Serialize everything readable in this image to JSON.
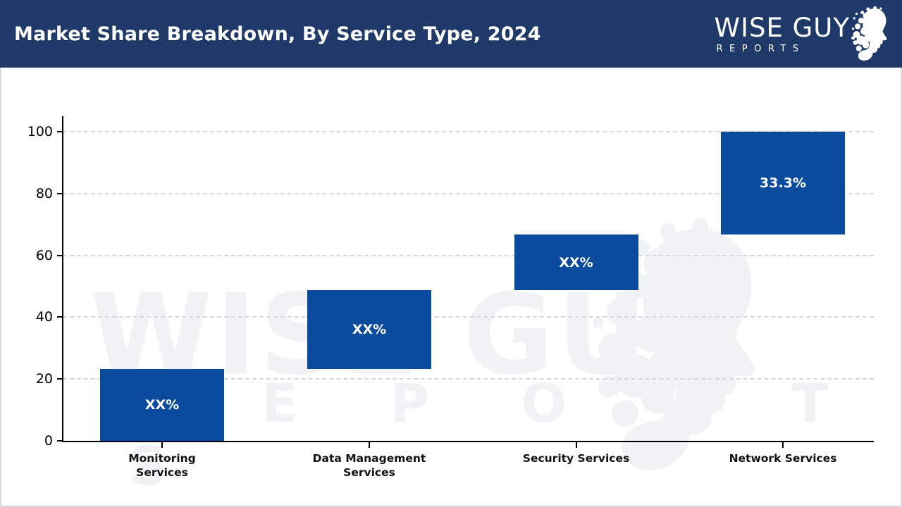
{
  "header": {
    "title": "Market Share Breakdown, By Service Type, 2024",
    "logo": {
      "line1": "WISE GUY",
      "line2": "REPORTS",
      "face_icon": "dotted-head-profile"
    }
  },
  "watermark": {
    "line1": "WISE GU",
    "line2": "R E P O R T S",
    "face_icon": "dotted-head-profile"
  },
  "colors": {
    "header_bg": "#1f3a68",
    "bar": "#0a4b9e",
    "bar_label": "#ffffff",
    "grid": "#d9d9d9",
    "axis": "#000000",
    "watermark": "#f1f2f4"
  },
  "chart_data": {
    "type": "bar",
    "subtype": "floating-waterfall",
    "title": "Market Share Breakdown, By Service Type, 2024",
    "xlabel": "",
    "ylabel": "",
    "ylim": [
      0,
      105
    ],
    "yticks": [
      0,
      20,
      40,
      60,
      80,
      100
    ],
    "grid": "horizontal-dashed",
    "legend": "none",
    "categories": [
      "Monitoring\nServices",
      "Data Management\nServices",
      "Security Services",
      "Network Services"
    ],
    "segments": [
      {
        "category": "Monitoring\nServices",
        "start": 0,
        "end": 23.2,
        "value": 23.2,
        "label": "XX%"
      },
      {
        "category": "Data Management\nServices",
        "start": 23.2,
        "end": 48.7,
        "value": 25.5,
        "label": "XX%"
      },
      {
        "category": "Security Services",
        "start": 48.7,
        "end": 66.7,
        "value": 18.0,
        "label": "XX%"
      },
      {
        "category": "Network Services",
        "start": 66.7,
        "end": 100,
        "value": 33.3,
        "label": "33.3%"
      }
    ]
  }
}
